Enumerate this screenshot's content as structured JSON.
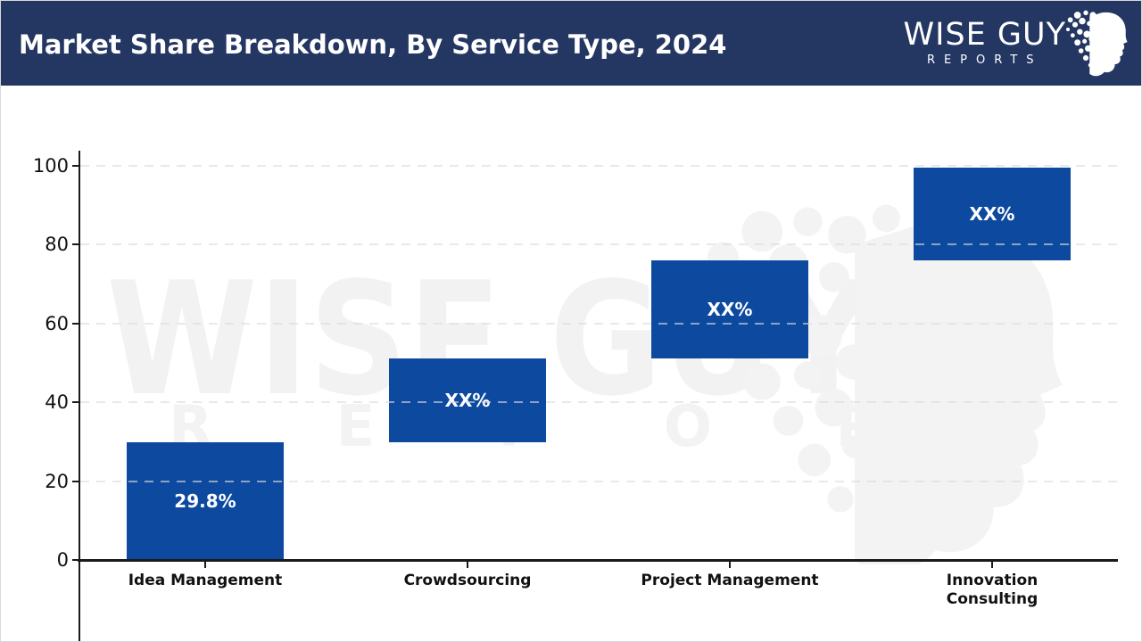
{
  "header": {
    "title": "Market Share Breakdown, By Service Type, 2024",
    "bg_color": "#243763",
    "logo_line1": "WISE GUY",
    "logo_line2": "REPORTS"
  },
  "watermark": {
    "line1": "WISE GUY",
    "line2": "R E P O R T S"
  },
  "chart_data": {
    "type": "bar",
    "variant": "waterfall",
    "title": "Market Share Breakdown, By Service Type, 2024",
    "categories": [
      "Idea Management",
      "Crowdsourcing",
      "Project Management",
      "Innovation Consulting"
    ],
    "segments": [
      {
        "category": "Idea Management",
        "start": 0,
        "end": 29.8,
        "label": "29.8%"
      },
      {
        "category": "Crowdsourcing",
        "start": 29.8,
        "end": 51.2,
        "label": "XX%"
      },
      {
        "category": "Project Management",
        "start": 51.2,
        "end": 76.0,
        "label": "XX%"
      },
      {
        "category": "Innovation Consulting",
        "start": 76.0,
        "end": 99.6,
        "label": "XX%"
      }
    ],
    "y_ticks": [
      0,
      20,
      40,
      60,
      80,
      100
    ],
    "ylim": [
      0,
      106
    ],
    "xlabel": "",
    "ylabel": "",
    "grid": "horizontal-dashed",
    "legend": "none",
    "bar_color": "#0d4a9f",
    "bar_label_color": "#ffffff",
    "axis_color": "#1a1a1a",
    "gridline_color": "#e2e2e2"
  }
}
